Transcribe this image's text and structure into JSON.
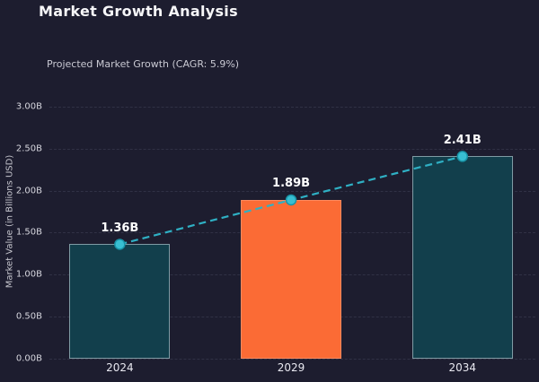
{
  "header": {
    "title": "Market Growth Analysis",
    "subtitle": "Projected Market Growth (CAGR: 5.9%)"
  },
  "chart_data": {
    "type": "bar",
    "title": "Market Growth Analysis",
    "subtitle": "Projected Market Growth (CAGR: 5.9%)",
    "categories": [
      "2024",
      "2029",
      "2034"
    ],
    "values": [
      1.36,
      1.89,
      2.41
    ],
    "value_labels": [
      "1.36B",
      "1.89B",
      "2.41B"
    ],
    "xlabel": "",
    "ylabel": "Market Value (in Billions USD)",
    "ylim": [
      0,
      3.0
    ],
    "ytick_values": [
      0,
      0.5,
      1.0,
      1.5,
      2.0,
      2.5,
      3.0
    ],
    "ytick_labels": [
      "0.00B",
      "0.50B",
      "1.00B",
      "1.50B",
      "2.00B",
      "2.50B",
      "3.00B"
    ],
    "grid": "horizontal-dashed",
    "legend": "none",
    "overlay": "dashed trend line with circular markers on bar tops",
    "colors": {
      "background": "#1d1d2f",
      "bar_fills": [
        "#123f4c",
        "#fb6b35",
        "#123f4c"
      ],
      "bar_borders": [
        "#7f9ba4",
        "#ff8a5e",
        "#7f9ba4"
      ],
      "trend_line": "#2fb0c4",
      "marker_fill": "#38bfd2",
      "marker_stroke": "#1993a6",
      "title_text": "#f6f6f8",
      "subtitle_text": "#c9c9d3",
      "tick_text": "#d6d6de",
      "x_tick_text": "#e8e8f0",
      "axis_label_text": "#c6c6ce",
      "value_label_text": "#ffffff"
    }
  }
}
